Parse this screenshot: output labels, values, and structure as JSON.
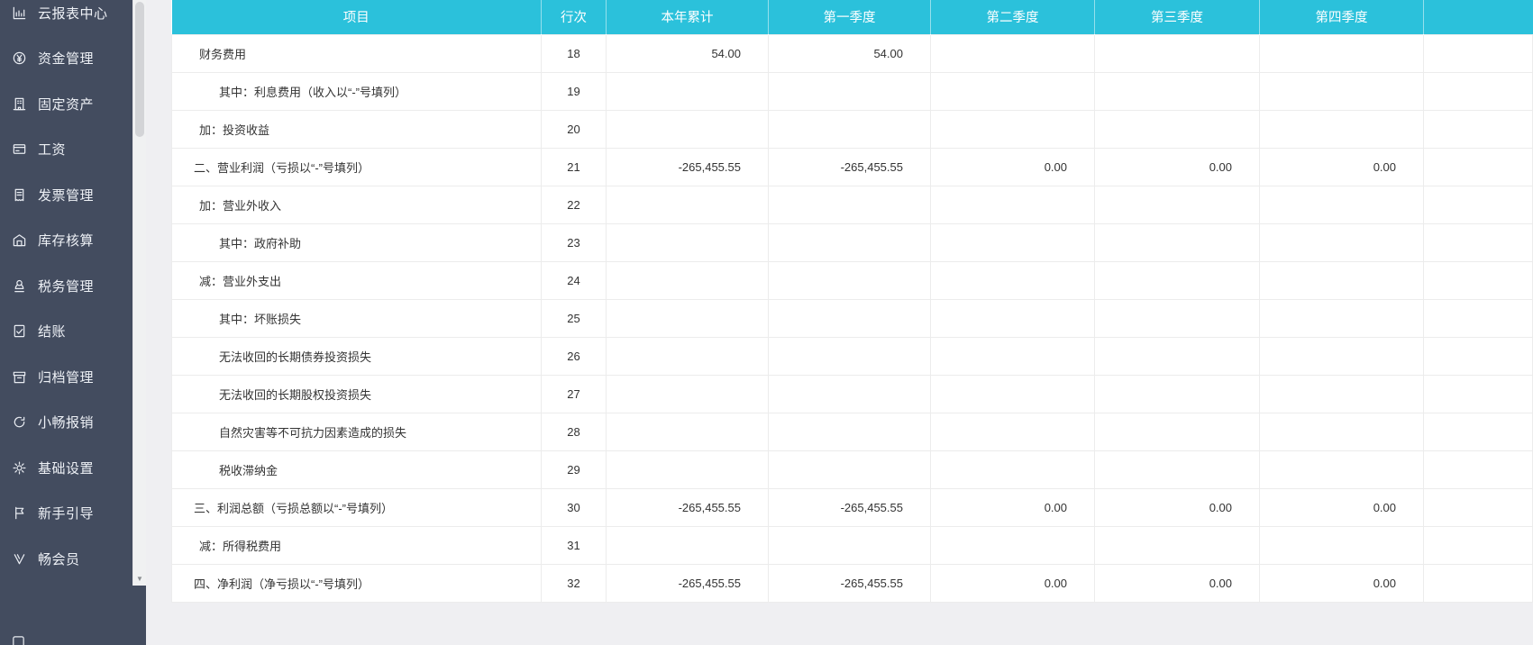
{
  "sidebar": {
    "items": [
      {
        "id": "cloud-report-center",
        "label": "云报表中心",
        "icon": "report-chart-icon"
      },
      {
        "id": "funds-management",
        "label": "资金管理",
        "icon": "funds-icon"
      },
      {
        "id": "fixed-assets",
        "label": "固定资产",
        "icon": "fixed-assets-icon"
      },
      {
        "id": "payroll",
        "label": "工资",
        "icon": "payroll-icon"
      },
      {
        "id": "invoice-management",
        "label": "发票管理",
        "icon": "invoice-icon"
      },
      {
        "id": "inventory-accounting",
        "label": "库存核算",
        "icon": "inventory-icon"
      },
      {
        "id": "tax-management",
        "label": "税务管理",
        "icon": "tax-icon"
      },
      {
        "id": "closing",
        "label": "结账",
        "icon": "closing-icon"
      },
      {
        "id": "archive-management",
        "label": "归档管理",
        "icon": "archive-icon"
      },
      {
        "id": "xiaochang-reimburse",
        "label": "小畅报销",
        "icon": "reimburse-icon"
      },
      {
        "id": "basic-settings",
        "label": "基础设置",
        "icon": "settings-icon"
      },
      {
        "id": "beginner-guide",
        "label": "新手引导",
        "icon": "guide-icon"
      },
      {
        "id": "member",
        "label": "畅会员",
        "icon": "member-icon"
      }
    ]
  },
  "scrollbar": {
    "down_arrow": "▼"
  },
  "table": {
    "columns": [
      "项目",
      "行次",
      "本年累计",
      "第一季度",
      "第二季度",
      "第三季度",
      "第四季度"
    ],
    "rows": [
      {
        "item": "财务费用",
        "indent": 1,
        "line": "18",
        "values": [
          "54.00",
          "54.00",
          "",
          "",
          ""
        ]
      },
      {
        "item": "其中：利息费用（收入以“-”号填列）",
        "indent": 2,
        "line": "19",
        "values": [
          "",
          "",
          "",
          "",
          ""
        ]
      },
      {
        "item": "加：投资收益",
        "indent": 1,
        "line": "20",
        "values": [
          "",
          "",
          "",
          "",
          ""
        ]
      },
      {
        "item": "二、营业利润（亏损以“-”号填列）",
        "indent": 0,
        "line": "21",
        "values": [
          "-265,455.55",
          "-265,455.55",
          "0.00",
          "0.00",
          "0.00"
        ]
      },
      {
        "item": "加：营业外收入",
        "indent": 1,
        "line": "22",
        "values": [
          "",
          "",
          "",
          "",
          ""
        ]
      },
      {
        "item": "其中：政府补助",
        "indent": 2,
        "line": "23",
        "values": [
          "",
          "",
          "",
          "",
          ""
        ]
      },
      {
        "item": "减：营业外支出",
        "indent": 1,
        "line": "24",
        "values": [
          "",
          "",
          "",
          "",
          ""
        ]
      },
      {
        "item": "其中：坏账损失",
        "indent": 2,
        "line": "25",
        "values": [
          "",
          "",
          "",
          "",
          ""
        ]
      },
      {
        "item": "无法收回的长期债券投资损失",
        "indent": 2,
        "line": "26",
        "values": [
          "",
          "",
          "",
          "",
          ""
        ]
      },
      {
        "item": "无法收回的长期股权投资损失",
        "indent": 2,
        "line": "27",
        "values": [
          "",
          "",
          "",
          "",
          ""
        ]
      },
      {
        "item": "自然灾害等不可抗力因素造成的损失",
        "indent": 2,
        "line": "28",
        "values": [
          "",
          "",
          "",
          "",
          ""
        ]
      },
      {
        "item": "税收滞纳金",
        "indent": 2,
        "line": "29",
        "values": [
          "",
          "",
          "",
          "",
          ""
        ]
      },
      {
        "item": "三、利润总额（亏损总额以“-”号填列）",
        "indent": 0,
        "line": "30",
        "values": [
          "-265,455.55",
          "-265,455.55",
          "0.00",
          "0.00",
          "0.00"
        ]
      },
      {
        "item": "减：所得税费用",
        "indent": 1,
        "line": "31",
        "values": [
          "",
          "",
          "",
          "",
          ""
        ]
      },
      {
        "item": "四、净利润（净亏损以“-”号填列）",
        "indent": 0,
        "line": "32",
        "values": [
          "-265,455.55",
          "-265,455.55",
          "0.00",
          "0.00",
          "0.00"
        ]
      }
    ]
  },
  "colors": {
    "accent": "#2bc1db",
    "sidebar": "#434c5f",
    "negative": "#e60000"
  }
}
